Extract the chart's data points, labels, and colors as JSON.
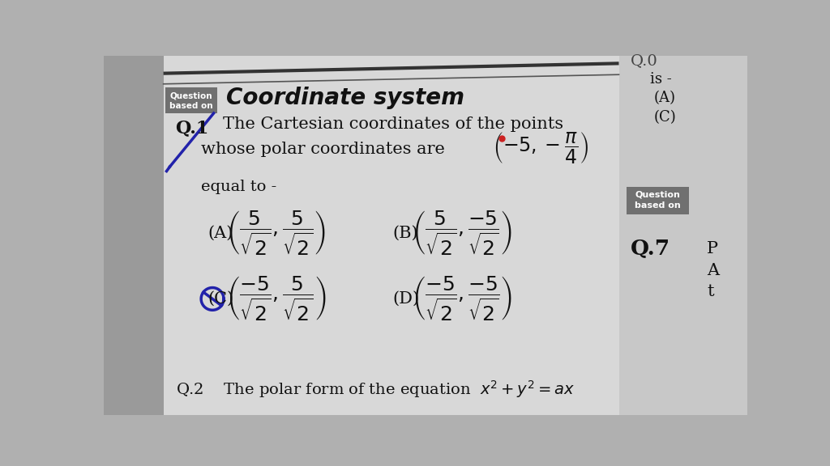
{
  "fig_width": 10.24,
  "fig_height": 5.76,
  "dpi": 100,
  "bg_color": "#b0b0b0",
  "left_strip_color": "#9a9a9a",
  "page_color": "#d8d8d8",
  "right_strip_color": "#c8c8c8",
  "title_box_color": "#707070",
  "title_box_text": [
    "Question",
    "based on"
  ],
  "title": "Coordinate system",
  "q1_label": "Q.1",
  "line1": "The Cartesian coordinates of the points",
  "line2": "whose polar coordinates are",
  "polar": "$\\left(-5,-\\dfrac{\\pi}{4}\\right)$",
  "equal_to": "equal to -",
  "optA_label": "(A)",
  "optA_math": "$\\left(\\dfrac{5}{\\sqrt{2}},\\dfrac{5}{\\sqrt{2}}\\right)$",
  "optB_label": "(B)",
  "optB_math": "$\\left(\\dfrac{5}{\\sqrt{2}},\\dfrac{-5}{\\sqrt{2}}\\right)$",
  "optC_label": "(C)",
  "optC_math": "$\\left(\\dfrac{-5}{\\sqrt{2}},\\dfrac{5}{\\sqrt{2}}\\right)$",
  "optD_label": "(D)",
  "optD_math": "$\\left(\\dfrac{-5}{\\sqrt{2}},\\dfrac{-5}{\\sqrt{2}}\\right)$",
  "q2_text": "Q.2    The polar form of the equation  $x^2 + y^2 = ax$",
  "right_q0": "Q.0",
  "right_is": "is -",
  "right_A": "(A)",
  "right_C": "(C)",
  "right_box_text": [
    "Question",
    "based on"
  ],
  "right_q7": "Q.7",
  "right_extra": [
    "P",
    "A",
    "t"
  ]
}
